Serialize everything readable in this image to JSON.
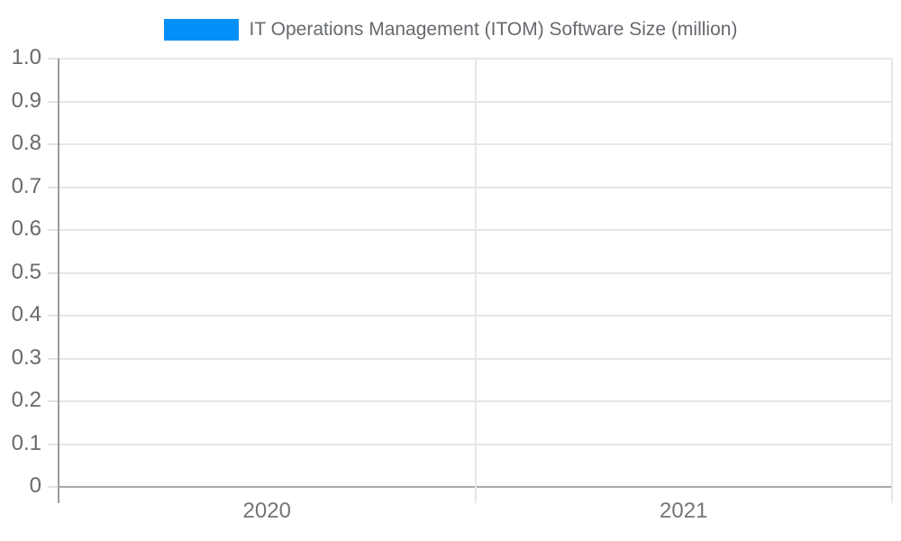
{
  "legend": {
    "label": "IT Operations Management (ITOM) Software Size (million)",
    "swatch_color": "#0490F8"
  },
  "chart_data": {
    "type": "bar",
    "title": "",
    "xlabel": "",
    "ylabel": "",
    "categories": [
      "2020",
      "2021"
    ],
    "series": [
      {
        "name": "IT Operations Management (ITOM) Software Size (million)",
        "color": "#0490F8",
        "values": []
      }
    ],
    "ylim": [
      0,
      1.0
    ],
    "ytick_step": 0.1,
    "yticks": [
      "0",
      "0.1",
      "0.2",
      "0.3",
      "0.4",
      "0.5",
      "0.6",
      "0.7",
      "0.8",
      "0.9",
      "1.0"
    ],
    "grid": true,
    "legend_position": "top",
    "note_visible_state": "plot area is empty - no bars drawn"
  },
  "colors": {
    "grid_line": "#e6e6e6",
    "axis_line": "#a9a9a9",
    "tick_label": "#696969",
    "legend_text": "#666a6e",
    "background": "#ffffff",
    "accent": "#0490F8"
  }
}
